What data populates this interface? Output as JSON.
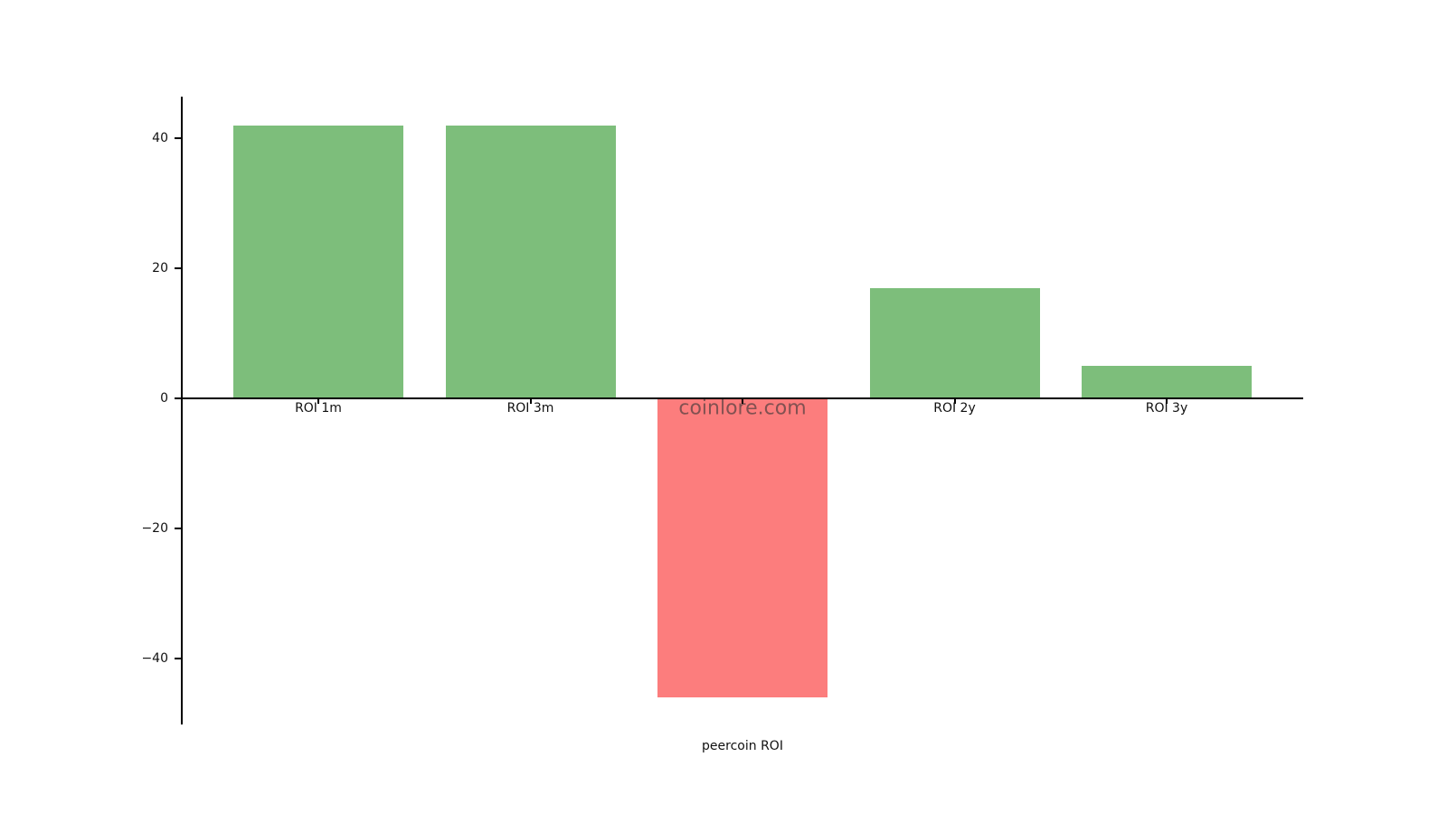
{
  "watermark": {
    "text": "coinlore.com",
    "color": "rgba(55,55,55,0.62)"
  },
  "chart_data": {
    "type": "bar",
    "title": "",
    "xlabel": "peercoin ROI",
    "ylabel": "",
    "categories": [
      "ROI 1m",
      "ROI 3m",
      "",
      "ROI 2y",
      "ROI 3y"
    ],
    "values": [
      42,
      42,
      -46,
      17,
      5
    ],
    "positive_color": "#7dbe7b",
    "negative_color": "#fc7d7d",
    "bar_colors": [
      "#7dbe7b",
      "#7dbe7b",
      "#fc7d7d",
      "#7dbe7b",
      "#7dbe7b"
    ],
    "yticks": [
      40,
      20,
      0,
      -20,
      -40
    ],
    "ylim": [
      -50,
      46
    ],
    "grid": false,
    "legend": null,
    "axis_color": "#000000",
    "background_color": "#ffffff",
    "note": "third x-axis category label is obscured by the coinlore.com watermark over the red bar"
  }
}
